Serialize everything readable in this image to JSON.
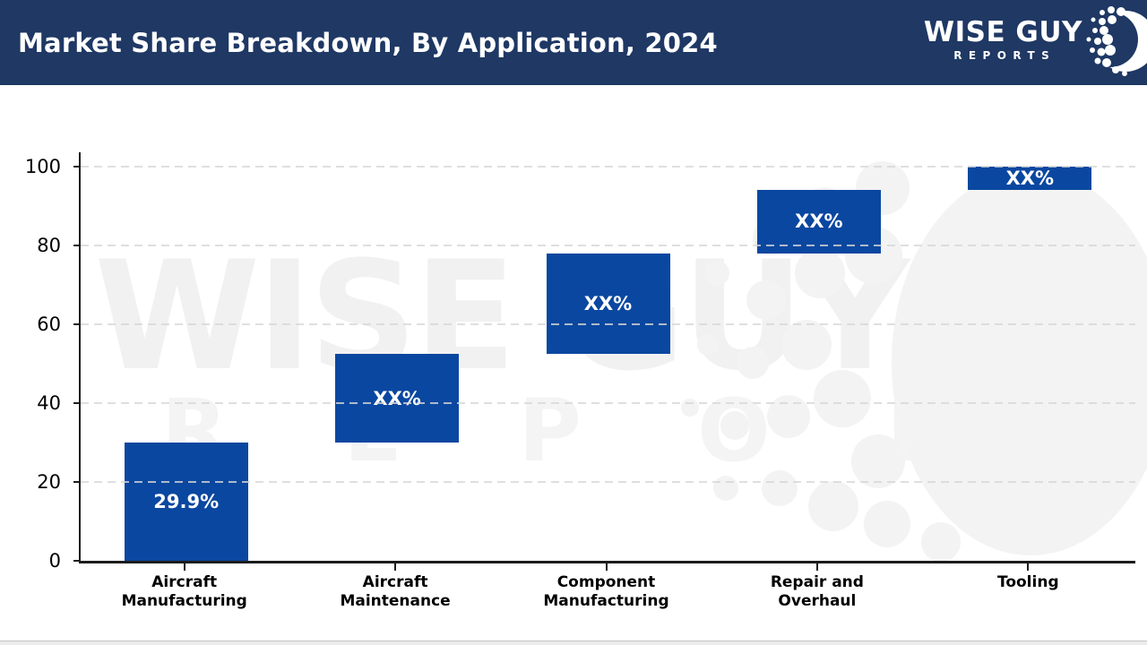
{
  "header": {
    "title": "Market Share Breakdown, By Application, 2024",
    "logo": {
      "line1": "WISE GUY",
      "line2": "REPORTS"
    }
  },
  "watermark": {
    "line1": "WISE GUY",
    "line2": "REPORTS"
  },
  "colors": {
    "header_bg": "#1f3864",
    "bar": "#0a47a0",
    "bar_label": "#ffffff",
    "axis": "#1c1c1c",
    "gridline": "#dedede",
    "watermark": "#f1f1f1"
  },
  "chart_data": {
    "type": "bar",
    "subtype": "waterfall",
    "title": "Market Share Breakdown, By Application, 2024",
    "categories": [
      "Aircraft\nManufacturing",
      "Aircraft\nMaintenance",
      "Component\nManufacturing",
      "Repair and\nOverhaul",
      "Tooling"
    ],
    "segments": [
      {
        "category": "Aircraft Manufacturing",
        "start": 0,
        "end": 29.9,
        "label": "29.9%"
      },
      {
        "category": "Aircraft Maintenance",
        "start": 29.9,
        "end": 52.5,
        "label": "XX%"
      },
      {
        "category": "Component Manufacturing",
        "start": 52.5,
        "end": 78.0,
        "label": "XX%"
      },
      {
        "category": "Repair and Overhaul",
        "start": 78.0,
        "end": 94.0,
        "label": "XX%"
      },
      {
        "category": "Tooling",
        "start": 94.0,
        "end": 100.0,
        "label": "XX%"
      }
    ],
    "xlabel": "",
    "ylabel": "",
    "yticks": [
      0,
      20,
      40,
      60,
      80,
      100
    ],
    "ylim": [
      0,
      103.6
    ],
    "grid": "dashed-horizontal",
    "legend": "none"
  }
}
